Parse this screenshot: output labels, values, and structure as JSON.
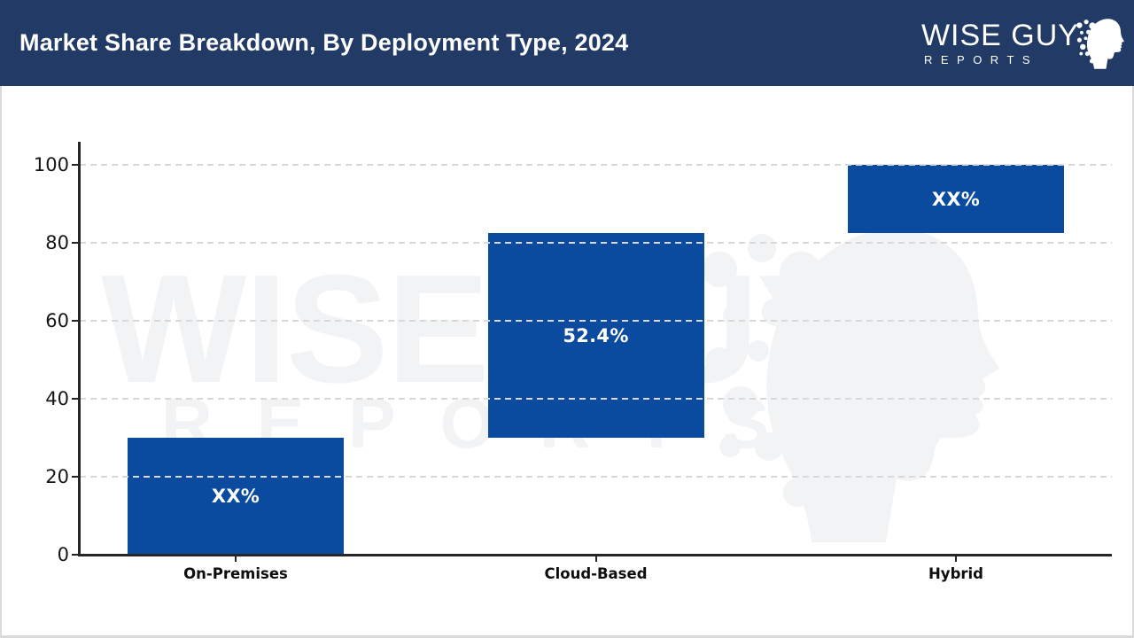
{
  "header": {
    "title": "Market Share Breakdown, By Deployment Type, 2024",
    "logo": {
      "line1": "WISE GUY",
      "line2": "REPORTS"
    }
  },
  "watermark": {
    "line1": "WISE GUY",
    "line2": "REPORTS"
  },
  "colors": {
    "header_bg": "#213a66",
    "bar_fill": "#0a4a9f",
    "bar_label_text": "#ffffff",
    "gridline": "#d8d8d8",
    "axis": "#262626",
    "tick_label": "#151515",
    "watermark": "#f2f3f5",
    "frame_border": "#d8dadc",
    "background": "#ffffff"
  },
  "chart_data": {
    "type": "bar",
    "subtype": "floating-waterfall",
    "title": "Market Share Breakdown, By Deployment Type, 2024",
    "categories": [
      "On-Premises",
      "Cloud-Based",
      "Hybrid"
    ],
    "values": [
      30,
      52.4,
      17.6
    ],
    "segments": [
      {
        "category": "On-Premises",
        "start": 0,
        "end": 30,
        "label": "XX%"
      },
      {
        "category": "Cloud-Based",
        "start": 30,
        "end": 82.4,
        "label": "52.4%"
      },
      {
        "category": "Hybrid",
        "start": 82.4,
        "end": 100,
        "label": "XX%"
      }
    ],
    "ylim": [
      0,
      100
    ],
    "yticks": [
      0,
      20,
      40,
      60,
      80,
      100
    ],
    "xlabel": "",
    "ylabel": "",
    "grid": "horizontal-dashed",
    "legend": "none"
  }
}
